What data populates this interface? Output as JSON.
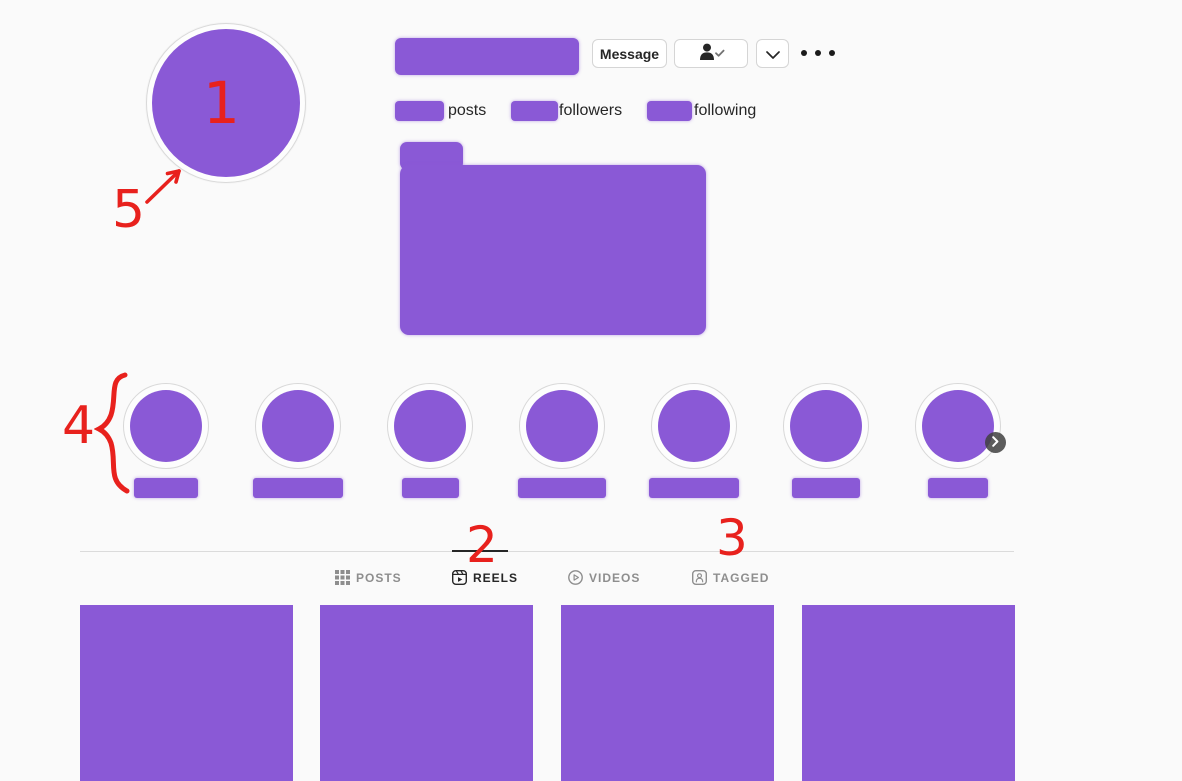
{
  "colors": {
    "background": "#fafafa",
    "redaction_purple": "#8a59d6",
    "annotation_red": "#e8211d",
    "divider": "#dbdbdb",
    "tab_inactive": "#8e8e8e",
    "tab_active": "#262626"
  },
  "header": {
    "username_redacted": true,
    "message_button_label": "Message",
    "follow_button_icon": "person-check-icon",
    "expand_button_icon": "chevron-down-icon",
    "options_icon": "ellipsis-icon",
    "stats": [
      {
        "label": "posts",
        "value_redacted": true
      },
      {
        "label": "followers",
        "value_redacted": true
      },
      {
        "label": "following",
        "value_redacted": true
      }
    ],
    "bio_redacted": true
  },
  "highlights": {
    "nav_icon": "chevron-right-icon",
    "items": [
      {
        "label_redacted": true,
        "label_width": 64
      },
      {
        "label_redacted": true,
        "label_width": 90
      },
      {
        "label_redacted": true,
        "label_width": 57
      },
      {
        "label_redacted": true,
        "label_width": 88
      },
      {
        "label_redacted": true,
        "label_width": 90
      },
      {
        "label_redacted": true,
        "label_width": 68
      },
      {
        "label_redacted": true,
        "label_width": 60
      }
    ]
  },
  "tabs": [
    {
      "label": "POSTS",
      "icon": "grid-icon",
      "active": false
    },
    {
      "label": "REELS",
      "icon": "reels-icon",
      "active": true
    },
    {
      "label": "VIDEOS",
      "icon": "play-circle-icon",
      "active": false
    },
    {
      "label": "TAGGED",
      "icon": "person-card-icon",
      "active": false
    }
  ],
  "posts": {
    "count": 4
  },
  "annotations": {
    "n1": "1",
    "n2": "2",
    "n3": "3",
    "n4": "4",
    "n5": "5"
  }
}
